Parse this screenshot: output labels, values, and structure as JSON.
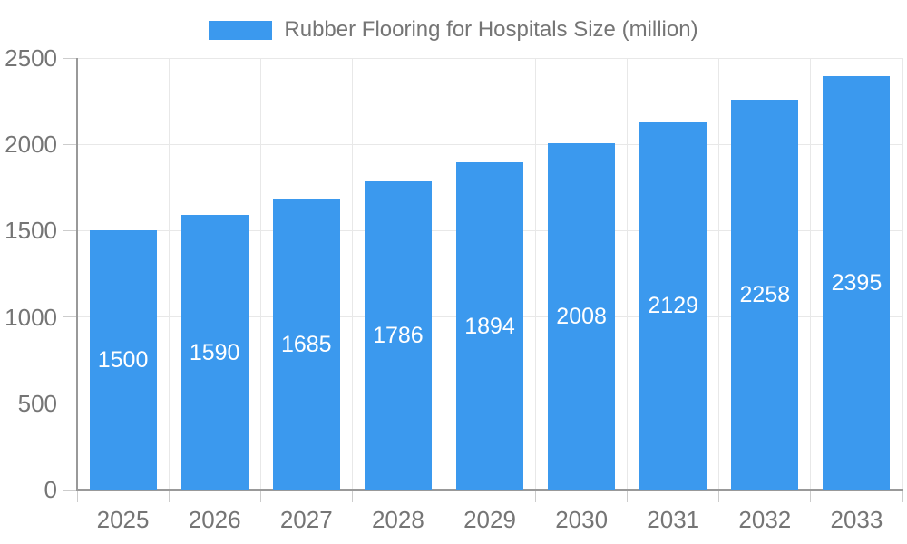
{
  "chart_data": {
    "type": "bar",
    "title": "Rubber Flooring for Hospitals Size (million)",
    "legend_entries": [
      "Rubber Flooring for Hospitals Size (million)"
    ],
    "legend_position": "top",
    "categories": [
      "2025",
      "2026",
      "2027",
      "2028",
      "2029",
      "2030",
      "2031",
      "2032",
      "2033"
    ],
    "values": [
      1500,
      1590,
      1685,
      1786,
      1894,
      2008,
      2129,
      2258,
      2395
    ],
    "xlabel": "",
    "ylabel": "",
    "ylim": [
      0,
      2500
    ],
    "yticks": [
      0,
      500,
      1000,
      1500,
      2000,
      2500
    ],
    "grid": true,
    "bar_color": "#3B99EE",
    "value_label_color": "#FFFFFF",
    "axis_text_color": "#757575",
    "axis_line_color": "#999999",
    "grid_color": "#E8E8E8",
    "tick_color": "#CCCCCC",
    "background_color": "#FFFFFF"
  }
}
